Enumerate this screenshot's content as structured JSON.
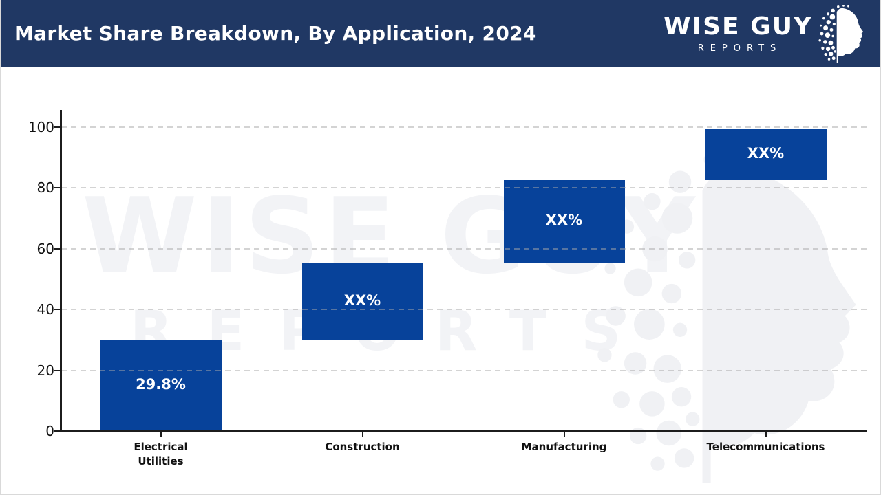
{
  "page": {
    "background": "#ffffff",
    "border_color": "#d9d9d9"
  },
  "header": {
    "background": "#203864",
    "title": "Market Share Breakdown, By Application, 2024",
    "logo": {
      "wordmark": "WISE GUY",
      "subtitle": "REPORTS",
      "head_icon": "dotted-head-profile"
    }
  },
  "watermark": {
    "wordmark": "WISE GUY",
    "subtitle": "REPORTS",
    "color": "#f2f3f6"
  },
  "chart_data": {
    "type": "bar",
    "subtype": "waterfall",
    "title": "Market Share Breakdown, By Application, 2024",
    "xlabel": "",
    "ylabel": "",
    "categories": [
      "Electrical Utilities",
      "Construction",
      "Manufacturing",
      "Telecommunications"
    ],
    "segments": [
      {
        "category": "Electrical Utilities",
        "label_lines": [
          "Electrical",
          "Utilities"
        ],
        "start": 0,
        "end": 29.8,
        "value_label": "29.8%"
      },
      {
        "category": "Construction",
        "label_lines": [
          "Construction"
        ],
        "start": 29.8,
        "end": 55.4,
        "value_label": "XX%"
      },
      {
        "category": "Manufacturing",
        "label_lines": [
          "Manufacturing"
        ],
        "start": 55.4,
        "end": 82.6,
        "value_label": "XX%"
      },
      {
        "category": "Telecommunications",
        "label_lines": [
          "Telecommunications"
        ],
        "start": 82.6,
        "end": 99.5,
        "value_label": "XX%"
      }
    ],
    "yticks": [
      0,
      20,
      40,
      60,
      80,
      100
    ],
    "ylim": [
      0,
      105.7
    ],
    "grid": {
      "axis": "y",
      "style": "dashed",
      "color": "#c9c9c9"
    },
    "legend": null,
    "colors": {
      "bar": "#07429a",
      "bar_label": "#ffffff",
      "axis": "#1c1c1c",
      "tick_label": "#111111"
    }
  }
}
